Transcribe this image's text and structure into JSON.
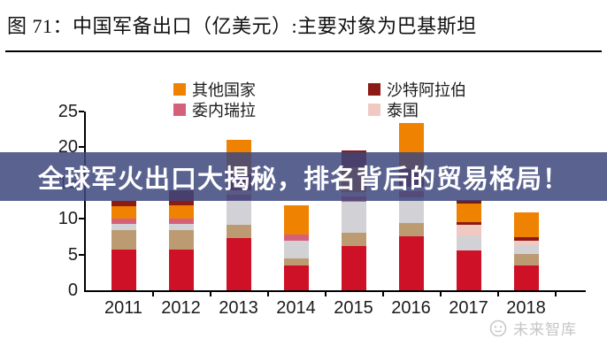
{
  "page": {
    "background": "#ffffff"
  },
  "figure": {
    "title": "图 71：中国军备出口（亿美元）:主要对象为巴基斯坦"
  },
  "legend": {
    "items": [
      {
        "label": "其他国家",
        "color": "#EF8200"
      },
      {
        "label": "沙特阿拉伯",
        "color": "#8C1A15"
      },
      {
        "label": "委内瑞拉",
        "color": "#D5607A"
      },
      {
        "label": "泰国",
        "color": "#EFC9C2"
      }
    ]
  },
  "chart_data": {
    "type": "bar",
    "stacked": true,
    "title": "中国军备出口（亿美元）",
    "categories": [
      "2011",
      "2012",
      "2013",
      "2014",
      "2015",
      "2016",
      "2017",
      "2018"
    ],
    "xlabel": "",
    "ylabel": "",
    "ylim": [
      0,
      25
    ],
    "yticks": [
      0,
      5,
      10,
      15,
      20,
      25
    ],
    "grid": false,
    "legend_position": "top",
    "palette": {
      "red": "#CE1126",
      "tan": "#BC9B72",
      "gray": "#D2D2D6",
      "rose": "#D5607A",
      "pink": "#EFC9C2",
      "orange": "#EF8200",
      "maroon": "#8C1A15",
      "darkmaroon": "#731F1A"
    },
    "totals": [
      12.5,
      14.0,
      21.0,
      11.9,
      19.5,
      23.4,
      12.6,
      10.9
    ],
    "bars": [
      {
        "category": "2011",
        "total": 12.5,
        "segments": [
          {
            "color": "red",
            "value": 5.7
          },
          {
            "color": "tan",
            "value": 2.7
          },
          {
            "color": "gray",
            "value": 0.9
          },
          {
            "color": "rose",
            "value": 0.7
          },
          {
            "color": "orange",
            "value": 1.7
          },
          {
            "color": "maroon",
            "value": 0.8
          }
        ]
      },
      {
        "category": "2012",
        "total": 14.0,
        "segments": [
          {
            "color": "red",
            "value": 5.7
          },
          {
            "color": "tan",
            "value": 2.7
          },
          {
            "color": "gray",
            "value": 0.9
          },
          {
            "color": "rose",
            "value": 0.7
          },
          {
            "color": "orange",
            "value": 1.9
          },
          {
            "color": "maroon",
            "value": 2.1
          }
        ]
      },
      {
        "category": "2013",
        "total": 21.0,
        "segments": [
          {
            "color": "red",
            "value": 7.3
          },
          {
            "color": "tan",
            "value": 1.9
          },
          {
            "color": "gray",
            "value": 3.4
          },
          {
            "color": "rose",
            "value": 0.8
          },
          {
            "color": "pink",
            "value": 0.6
          },
          {
            "color": "maroon",
            "value": 2.2
          },
          {
            "color": "orange",
            "value": 4.8
          }
        ]
      },
      {
        "category": "2014",
        "total": 11.9,
        "segments": [
          {
            "color": "red",
            "value": 3.5
          },
          {
            "color": "tan",
            "value": 0.9
          },
          {
            "color": "gray",
            "value": 2.5
          },
          {
            "color": "rose",
            "value": 0.9
          },
          {
            "color": "orange",
            "value": 4.1
          }
        ]
      },
      {
        "category": "2015",
        "total": 19.5,
        "segments": [
          {
            "color": "red",
            "value": 6.2
          },
          {
            "color": "tan",
            "value": 1.9
          },
          {
            "color": "gray",
            "value": 4.3
          },
          {
            "color": "rose",
            "value": 0.7
          },
          {
            "color": "pink",
            "value": 0.6
          },
          {
            "color": "orange",
            "value": 3.5
          },
          {
            "color": "maroon",
            "value": 2.3
          }
        ]
      },
      {
        "category": "2016",
        "total": 23.4,
        "segments": [
          {
            "color": "red",
            "value": 7.5
          },
          {
            "color": "tan",
            "value": 1.9
          },
          {
            "color": "gray",
            "value": 3.6
          },
          {
            "color": "rose",
            "value": 0.8
          },
          {
            "color": "pink",
            "value": 0.7
          },
          {
            "color": "maroon",
            "value": 2.5
          },
          {
            "color": "orange",
            "value": 6.4
          }
        ]
      },
      {
        "category": "2017",
        "total": 12.6,
        "segments": [
          {
            "color": "red",
            "value": 5.6
          },
          {
            "color": "gray",
            "value": 1.9
          },
          {
            "color": "pink",
            "value": 1.6
          },
          {
            "color": "maroon",
            "value": 0.4
          },
          {
            "color": "orange",
            "value": 2.6
          },
          {
            "color": "darkmaroon",
            "value": 0.5
          }
        ]
      },
      {
        "category": "2018",
        "total": 10.9,
        "segments": [
          {
            "color": "red",
            "value": 3.5
          },
          {
            "color": "tan",
            "value": 1.6
          },
          {
            "color": "gray",
            "value": 1.2
          },
          {
            "color": "pink",
            "value": 0.6
          },
          {
            "color": "maroon",
            "value": 0.5
          },
          {
            "color": "orange",
            "value": 3.5
          }
        ]
      }
    ]
  },
  "overlay_banner": {
    "text": "全球军火出口大揭秘，排名背后的贸易格局！",
    "background": "rgba(61,70,125,0.85)",
    "text_color": "#ffffff"
  },
  "watermark": {
    "text": "未来智库",
    "color": "#c6c6c6"
  }
}
